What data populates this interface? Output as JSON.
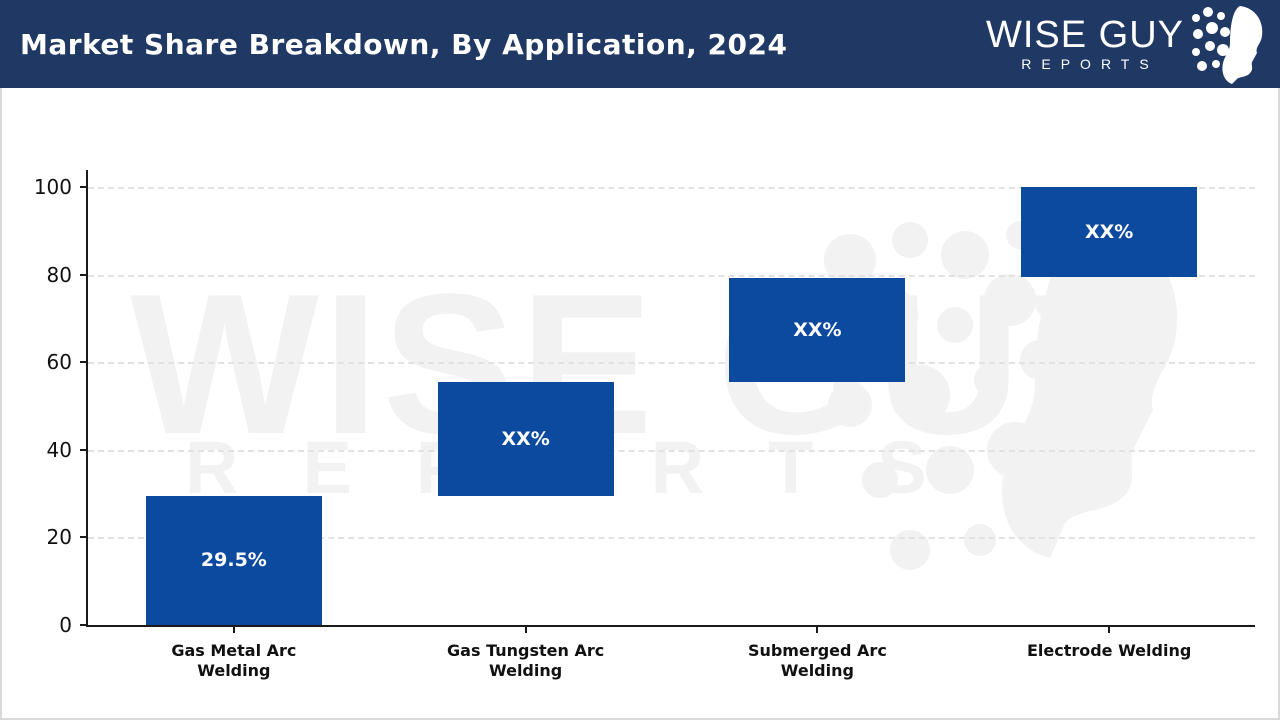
{
  "header": {
    "title": "Market Share Breakdown, By Application, 2024",
    "bg_color": "#203864",
    "logo": {
      "line1": "WISE GUY",
      "line2": "REPORTS"
    }
  },
  "watermark": {
    "line1": "WISE GUY",
    "line2": "REPORTS"
  },
  "chart_data": {
    "type": "bar",
    "subtype": "waterfall",
    "title": "Market Share Breakdown, By Application, 2024",
    "categories": [
      "Gas Metal Arc\nWelding",
      "Gas Tungsten Arc\nWelding",
      "Submerged Arc\nWelding",
      "Electrode Welding"
    ],
    "bars": [
      {
        "category": "Gas Metal Arc Welding",
        "start": 0,
        "end": 29.5,
        "label": "29.5%"
      },
      {
        "category": "Gas Tungsten Arc Welding",
        "start": 29.5,
        "end": 55.5,
        "label": "XX%"
      },
      {
        "category": "Submerged Arc Welding",
        "start": 55.5,
        "end": 79.3,
        "label": "XX%"
      },
      {
        "category": "Electrode Welding",
        "start": 79.5,
        "end": 100,
        "label": "XX%"
      }
    ],
    "y_ticks": [
      0,
      20,
      40,
      60,
      80,
      100
    ],
    "ylim": [
      0,
      105
    ],
    "xlabel": "",
    "ylabel": "",
    "grid": "horizontal-dashed",
    "legend": "none",
    "bar_color": "#0b4a9f",
    "bar_label_color": "#ffffff",
    "axis_color": "#1a1a1a",
    "gridline_color": "#e2e2e2"
  }
}
